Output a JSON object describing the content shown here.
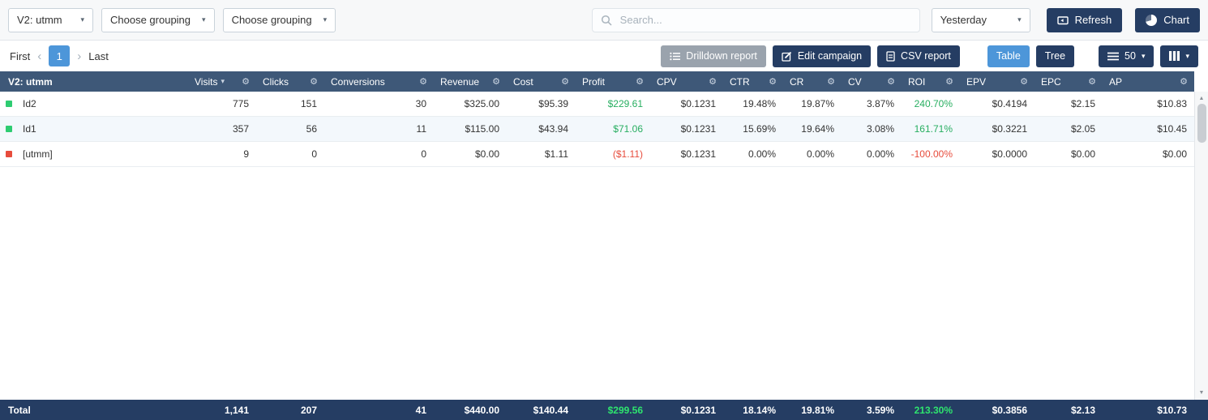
{
  "colors": {
    "navy": "#253d63",
    "table_header": "#3e5878",
    "active_blue": "#4d96d9",
    "disabled_gray": "#9aa3ad",
    "positive_green": "#27ae60",
    "negative_red": "#e74c3c",
    "footer_green": "#2ee56e"
  },
  "icons": {
    "gear": "⚙",
    "sort_desc": "▾",
    "caret_down": "▾",
    "chevron_left": "‹",
    "chevron_right": "›",
    "scroll_up": "▲",
    "scroll_down": "▼",
    "search": "svg-magnifier",
    "refresh": "svg-reload-box",
    "chart": "css-pie",
    "drilldown": "svg-list",
    "edit": "svg-pencil-square",
    "csv": "svg-document",
    "rows_menu": "svg-hamburger",
    "columns": "svg-vertical-bars"
  },
  "toolbar": {
    "campaign_select": {
      "value": "V2: utmm"
    },
    "grouping_selects": [
      {
        "value": "Choose grouping"
      },
      {
        "value": "Choose grouping"
      }
    ],
    "search": {
      "placeholder": "Search...",
      "value": ""
    },
    "date_select": {
      "value": "Yesterday"
    },
    "refresh_button": "Refresh",
    "chart_button": "Chart"
  },
  "subbar": {
    "pagination": {
      "first": "First",
      "current_page": "1",
      "last": "Last"
    },
    "buttons": {
      "drilldown": "Drilldown report",
      "edit_campaign": "Edit campaign",
      "csv": "CSV report",
      "table_view": "Table",
      "tree_view": "Tree",
      "page_size": "50"
    }
  },
  "table": {
    "columns": [
      {
        "key": "name",
        "label": "V2: utmm",
        "gear": false,
        "sort": false
      },
      {
        "key": "visits",
        "label": "Visits",
        "gear": true,
        "sort": true
      },
      {
        "key": "clicks",
        "label": "Clicks",
        "gear": true,
        "sort": false
      },
      {
        "key": "conversions",
        "label": "Conversions",
        "gear": true,
        "sort": false
      },
      {
        "key": "revenue",
        "label": "Revenue",
        "gear": true,
        "sort": false
      },
      {
        "key": "cost",
        "label": "Cost",
        "gear": true,
        "sort": false
      },
      {
        "key": "profit",
        "label": "Profit",
        "gear": true,
        "sort": false
      },
      {
        "key": "cpv",
        "label": "CPV",
        "gear": true,
        "sort": false
      },
      {
        "key": "ctr",
        "label": "CTR",
        "gear": true,
        "sort": false
      },
      {
        "key": "cr",
        "label": "CR",
        "gear": true,
        "sort": false
      },
      {
        "key": "cv",
        "label": "CV",
        "gear": true,
        "sort": false
      },
      {
        "key": "roi",
        "label": "ROI",
        "gear": true,
        "sort": false
      },
      {
        "key": "epv",
        "label": "EPV",
        "gear": true,
        "sort": false
      },
      {
        "key": "epc",
        "label": "EPC",
        "gear": true,
        "sort": false
      },
      {
        "key": "ap",
        "label": "AP",
        "gear": true,
        "sort": false
      }
    ],
    "rows": [
      {
        "status": "positive",
        "cells": [
          "Id2",
          "775",
          "151",
          "30",
          "$325.00",
          "$95.39",
          "$229.61",
          "$0.1231",
          "19.48%",
          "19.87%",
          "3.87%",
          "240.70%",
          "$0.4194",
          "$2.15",
          "$10.83"
        ],
        "cell_states": {
          "6": "positive",
          "11": "positive"
        }
      },
      {
        "status": "positive",
        "cells": [
          "Id1",
          "357",
          "56",
          "11",
          "$115.00",
          "$43.94",
          "$71.06",
          "$0.1231",
          "15.69%",
          "19.64%",
          "3.08%",
          "161.71%",
          "$0.3221",
          "$2.05",
          "$10.45"
        ],
        "cell_states": {
          "6": "positive",
          "11": "positive"
        }
      },
      {
        "status": "negative",
        "cells": [
          "[utmm]",
          "9",
          "0",
          "0",
          "$0.00",
          "$1.11",
          "($1.11)",
          "$0.1231",
          "0.00%",
          "0.00%",
          "0.00%",
          "-100.00%",
          "$0.0000",
          "$0.00",
          "$0.00"
        ],
        "cell_states": {
          "6": "negative",
          "11": "negative"
        }
      }
    ],
    "total": {
      "cells": [
        "Total",
        "1,141",
        "207",
        "41",
        "$440.00",
        "$140.44",
        "$299.56",
        "$0.1231",
        "18.14%",
        "19.81%",
        "3.59%",
        "213.30%",
        "$0.3856",
        "$2.13",
        "$10.73"
      ],
      "cell_states": {
        "6": "positive",
        "11": "positive"
      }
    }
  }
}
